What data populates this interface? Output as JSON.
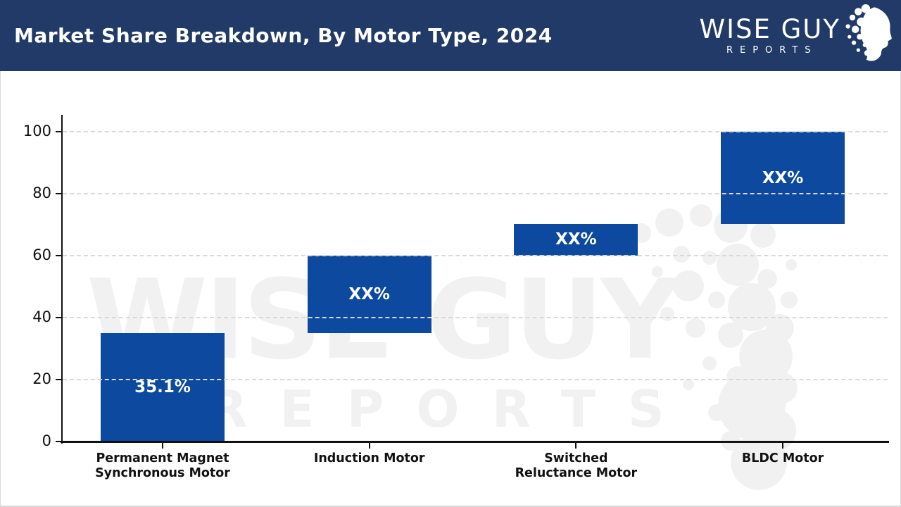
{
  "header": {
    "title": "Market Share Breakdown, By Motor Type, 2024",
    "logo": {
      "line1": "WISE GUY",
      "line2": "REPORTS"
    }
  },
  "watermark": {
    "line1": "WISE GUY",
    "line2": "REPORTS"
  },
  "colors": {
    "header_bg": "#213a67",
    "bar": "#0d4a9f",
    "grid": "#d9d9d9",
    "axis": "#111111",
    "watermark": "#f1f1f2",
    "bar_label": "#ffffff"
  },
  "chart_data": {
    "type": "bar",
    "subtype": "waterfall",
    "title": "Market Share Breakdown, By Motor Type, 2024",
    "categories": [
      "Permanent Magnet\nSynchronous Motor",
      "Induction Motor",
      "Switched\nReluctance Motor",
      "BLDC Motor"
    ],
    "segments": [
      {
        "category": "Permanent Magnet Synchronous Motor",
        "start": 0,
        "end": 35.1,
        "label": "35.1%"
      },
      {
        "category": "Induction Motor",
        "start": 35.1,
        "end": 60.1,
        "label": "XX%"
      },
      {
        "category": "Switched Reluctance Motor",
        "start": 60.1,
        "end": 70.2,
        "label": "XX%"
      },
      {
        "category": "BLDC Motor",
        "start": 70.2,
        "end": 100,
        "label": "XX%"
      }
    ],
    "xlabel": "",
    "ylabel": "",
    "ylim": [
      0,
      100
    ],
    "yticks": [
      0,
      20,
      40,
      60,
      80,
      100
    ],
    "grid": "horizontal-dashed",
    "legend": "none"
  }
}
